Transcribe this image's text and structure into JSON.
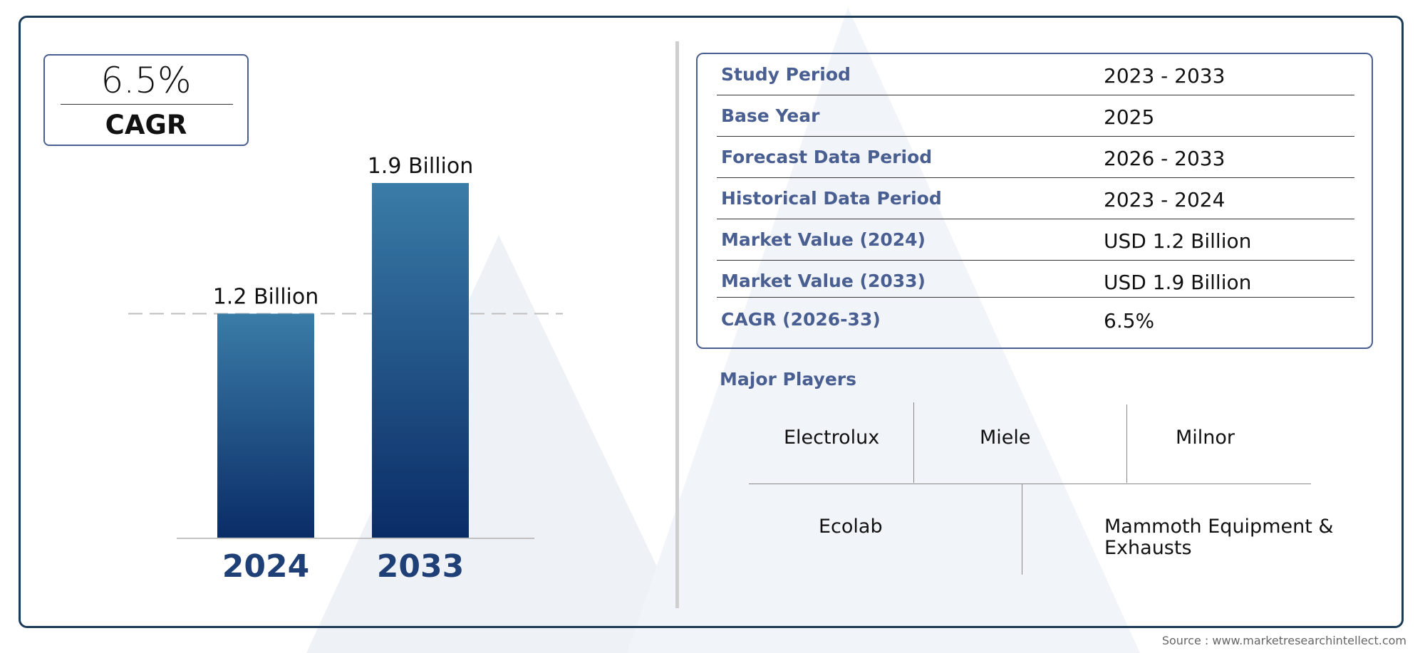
{
  "cagr_card": {
    "value": "6.5%",
    "label": "CAGR"
  },
  "chart_data": {
    "type": "bar",
    "categories": [
      "2024",
      "2033"
    ],
    "values": [
      1.2,
      1.9
    ],
    "value_labels": [
      "1.2 Billion",
      "1.9 Billion"
    ],
    "title": "",
    "xlabel": "",
    "ylabel": "",
    "ylim": [
      0,
      1.9
    ],
    "grid": false,
    "reference_line": 1.2,
    "bar_color_top": "#3a7ca8",
    "bar_color_bottom": "#0a2c66",
    "category_label_color": "#1f3f77"
  },
  "summary": {
    "rows": [
      {
        "label": "Study Period",
        "value": "2023 - 2033"
      },
      {
        "label": "Base Year",
        "value": "2025"
      },
      {
        "label": "Forecast Data Period",
        "value": "2026 - 2033"
      },
      {
        "label": "Historical Data Period",
        "value": "2023 - 2024"
      },
      {
        "label": "Market Value (2024)",
        "value": "USD 1.2 Billion"
      },
      {
        "label": "Market Value (2033)",
        "value": "USD 1.9 Billion"
      },
      {
        "label": "CAGR (2026-33)",
        "value": "6.5%"
      }
    ]
  },
  "players": {
    "title": "Major Players",
    "names": [
      "Electrolux",
      "Miele",
      "Milnor",
      "Ecolab",
      "Mammoth Equipment &",
      "Exhausts"
    ]
  },
  "source": "Source : www.marketresearchintellect.com",
  "colors": {
    "frame": "#1b3a57",
    "accent": "#4a5f91"
  }
}
